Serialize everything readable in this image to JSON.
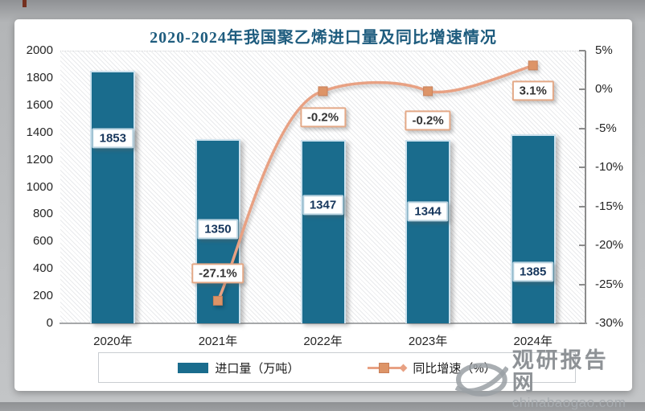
{
  "title": "2020-2024年我国聚乙烯进口量及同比增速情况",
  "chart_data": {
    "type": "combo",
    "categories": [
      "2020年",
      "2021年",
      "2022年",
      "2023年",
      "2024年"
    ],
    "series": [
      {
        "name": "进口量（万吨）",
        "type": "bar",
        "axis": "left",
        "color": "#1a6c8d",
        "values": [
          1853,
          1350,
          1347,
          1344,
          1385
        ],
        "data_labels": [
          "1853",
          "1350",
          "1347",
          "1344",
          "1385"
        ]
      },
      {
        "name": "同比增速（%）",
        "type": "line",
        "axis": "right",
        "color": "#e8a183",
        "values": [
          null,
          -27.1,
          -0.2,
          -0.2,
          3.1
        ],
        "data_labels": [
          "",
          "-27.1%",
          "-0.2%",
          "-0.2%",
          "3.1%"
        ]
      }
    ],
    "left_axis": {
      "min": 0,
      "max": 2000,
      "step": 200,
      "tick_labels": [
        "2000",
        "1800",
        "1600",
        "1400",
        "1200",
        "1000",
        "800",
        "600",
        "400",
        "200",
        "0"
      ]
    },
    "right_axis": {
      "min": -30,
      "max": 5,
      "step": 5,
      "tick_labels": [
        "5%",
        "0%",
        "-5%",
        "-10%",
        "-15%",
        "-20%",
        "-25%",
        "-30%"
      ]
    },
    "grid": "no gridlines; diagonal hatched plot background",
    "legend_position": "bottom"
  },
  "legend": {
    "items": [
      {
        "label": "进口量（万吨）",
        "swatch": "bar"
      },
      {
        "label": "同比增速（%）",
        "swatch": "line-marker"
      }
    ]
  },
  "watermark": {
    "site_name": "观研报告网",
    "site_domain": "chinabaogao.com",
    "logo": "swoosh-eye-icon"
  },
  "colors": {
    "bar": "#1a6c8d",
    "bar_border": "#cde2ee",
    "line": "#e8a183",
    "marker": "#dd9467",
    "marker_border": "#c9805a",
    "title": "#1e5c7e",
    "value_label_text": "#16365c",
    "value_label_border": "#b9d3e0",
    "pct_label_border": "#e4a987",
    "axis_text": "#262626",
    "axis_line": "#8c8c8c",
    "panel_bg": "#ffffff",
    "outer_bg": "#b3b5b7",
    "watermark_text": "#8e9296"
  }
}
